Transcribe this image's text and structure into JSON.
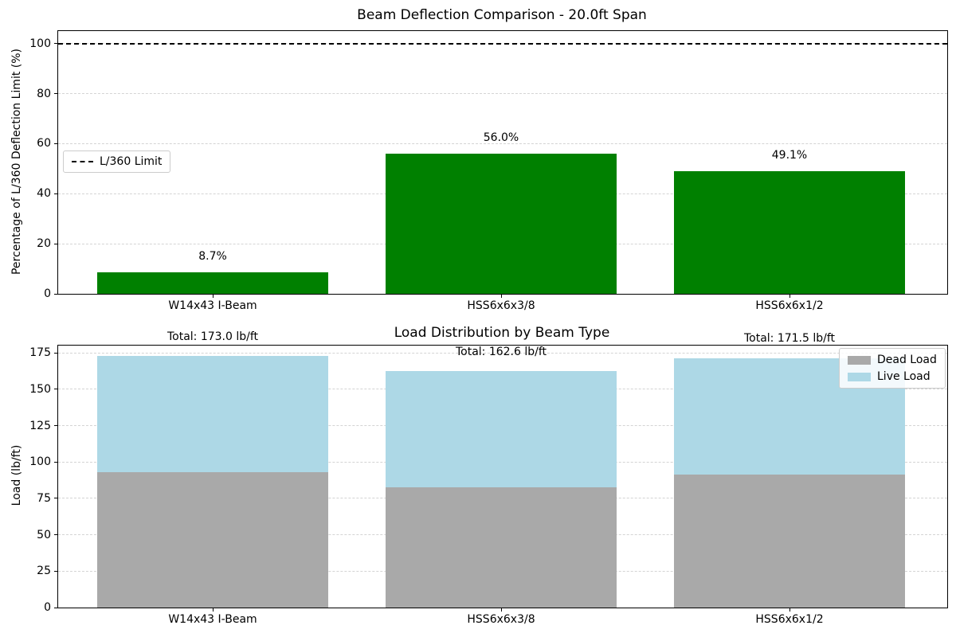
{
  "figure": {
    "background": "#ffffff"
  },
  "chart_data": [
    {
      "type": "bar",
      "title": "Beam Deflection Comparison - 20.0ft Span",
      "ylabel": "Percentage of L/360 Deflection Limit (%)",
      "xlabel": "",
      "categories": [
        "W14x43 I-Beam",
        "HSS6x6x3/8",
        "HSS6x6x1/2"
      ],
      "values": [
        8.7,
        56.0,
        49.1
      ],
      "bar_labels": [
        "8.7%",
        "56.0%",
        "49.1%"
      ],
      "bar_color": "#008000",
      "yticks": [
        0,
        20,
        40,
        60,
        80,
        100
      ],
      "ylim": [
        0,
        105
      ],
      "grid": "dashed-horizontal",
      "reference_line": {
        "value": 100,
        "label": "L/360 Limit",
        "color": "#000000",
        "style": "dashed"
      },
      "legend_loc": "center-left"
    },
    {
      "type": "stacked-bar",
      "title": "Load Distribution by Beam Type",
      "ylabel": "Load (lb/ft)",
      "xlabel": "",
      "categories": [
        "W14x43 I-Beam",
        "HSS6x6x3/8",
        "HSS6x6x1/2"
      ],
      "series": [
        {
          "name": "Dead Load",
          "color": "#a9a9a9",
          "values": [
            93.0,
            82.6,
            91.5
          ]
        },
        {
          "name": "Live Load",
          "color": "#add8e6",
          "values": [
            80.0,
            80.0,
            80.0
          ]
        }
      ],
      "totals": [
        173.0,
        162.6,
        171.5
      ],
      "total_labels": [
        "Total: 173.0 lb/ft",
        "Total: 162.6 lb/ft",
        "Total: 171.5 lb/ft"
      ],
      "yticks": [
        0,
        25,
        50,
        75,
        100,
        125,
        150,
        175
      ],
      "ylim": [
        0,
        180
      ],
      "grid": "dashed-horizontal",
      "legend_loc": "upper-right"
    }
  ]
}
